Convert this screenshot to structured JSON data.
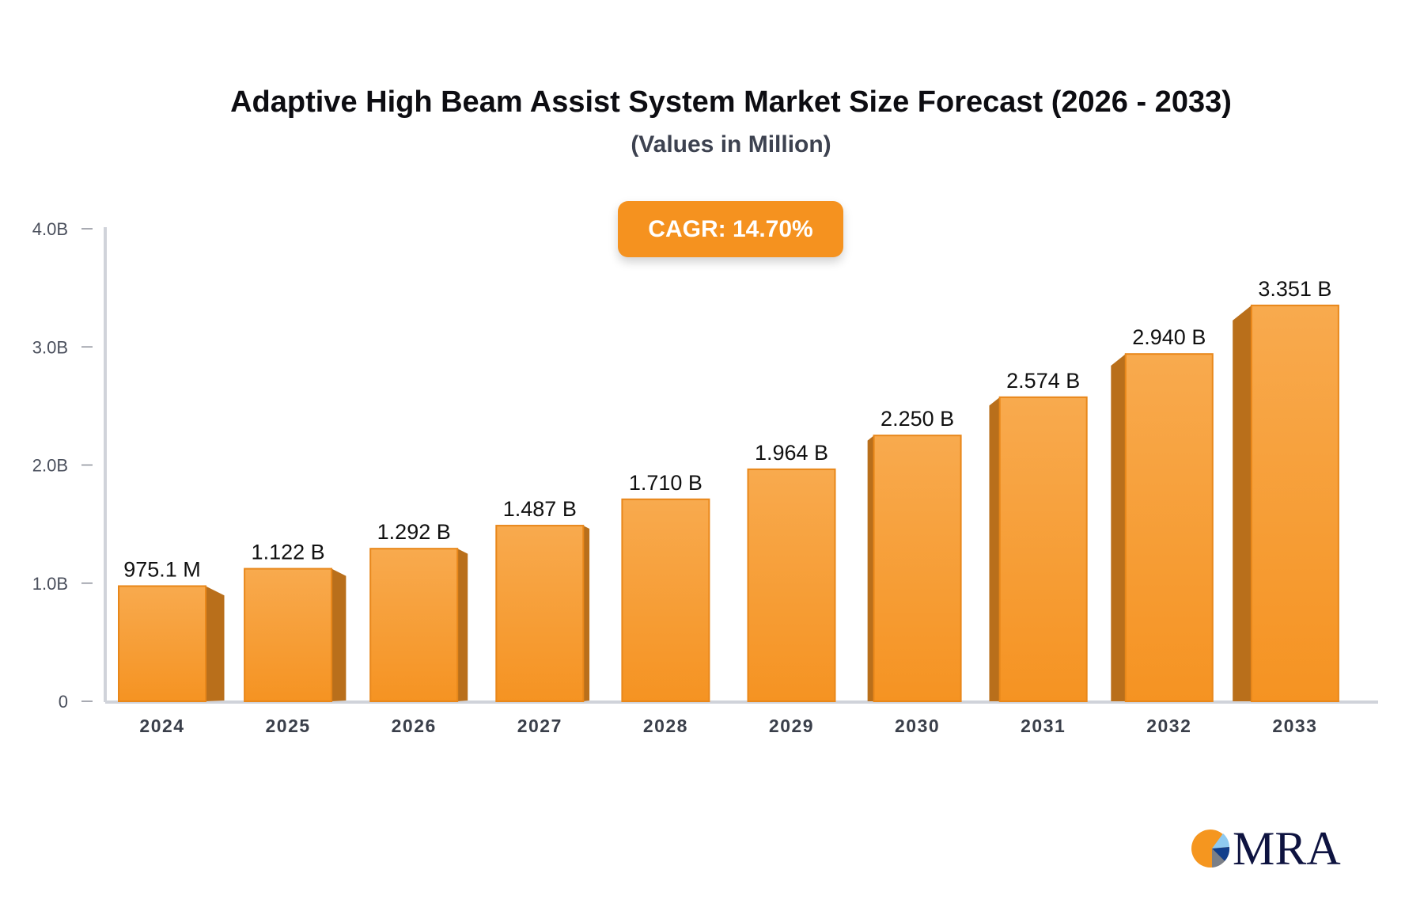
{
  "chart_data": {
    "type": "bar",
    "title": "Adaptive High Beam Assist System Market Size Forecast (2026 - 2033)",
    "subtitle": "(Values in Million)",
    "annotation": "CAGR: 14.70%",
    "categories": [
      "2024",
      "2025",
      "2026",
      "2027",
      "2028",
      "2029",
      "2030",
      "2031",
      "2032",
      "2033"
    ],
    "values": [
      0.9751,
      1.122,
      1.292,
      1.487,
      1.71,
      1.964,
      2.25,
      2.574,
      2.94,
      3.351
    ],
    "data_labels": [
      "975.1 M",
      "1.122 B",
      "1.292 B",
      "1.487 B",
      "1.710 B",
      "1.964 B",
      "2.250 B",
      "2.574 B",
      "2.940 B",
      "3.351 B"
    ],
    "unit": "B",
    "ylim": [
      0,
      4.0
    ],
    "yticks": [
      0,
      1.0,
      2.0,
      3.0,
      4.0
    ],
    "ytick_labels": [
      "0",
      "1.0B",
      "2.0B",
      "3.0B",
      "4.0B"
    ],
    "xlabel": "",
    "ylabel": "",
    "grid": false,
    "legend": "none",
    "colors": {
      "bar_top": "#f8aa4e",
      "bar_bottom": "#f59322",
      "bar_side": "#b96f1b",
      "bar_edge": "#e8871a",
      "axis": "#d0d3da",
      "cagr_bg": "#f5921f"
    }
  },
  "logo": {
    "text": "MRA"
  }
}
